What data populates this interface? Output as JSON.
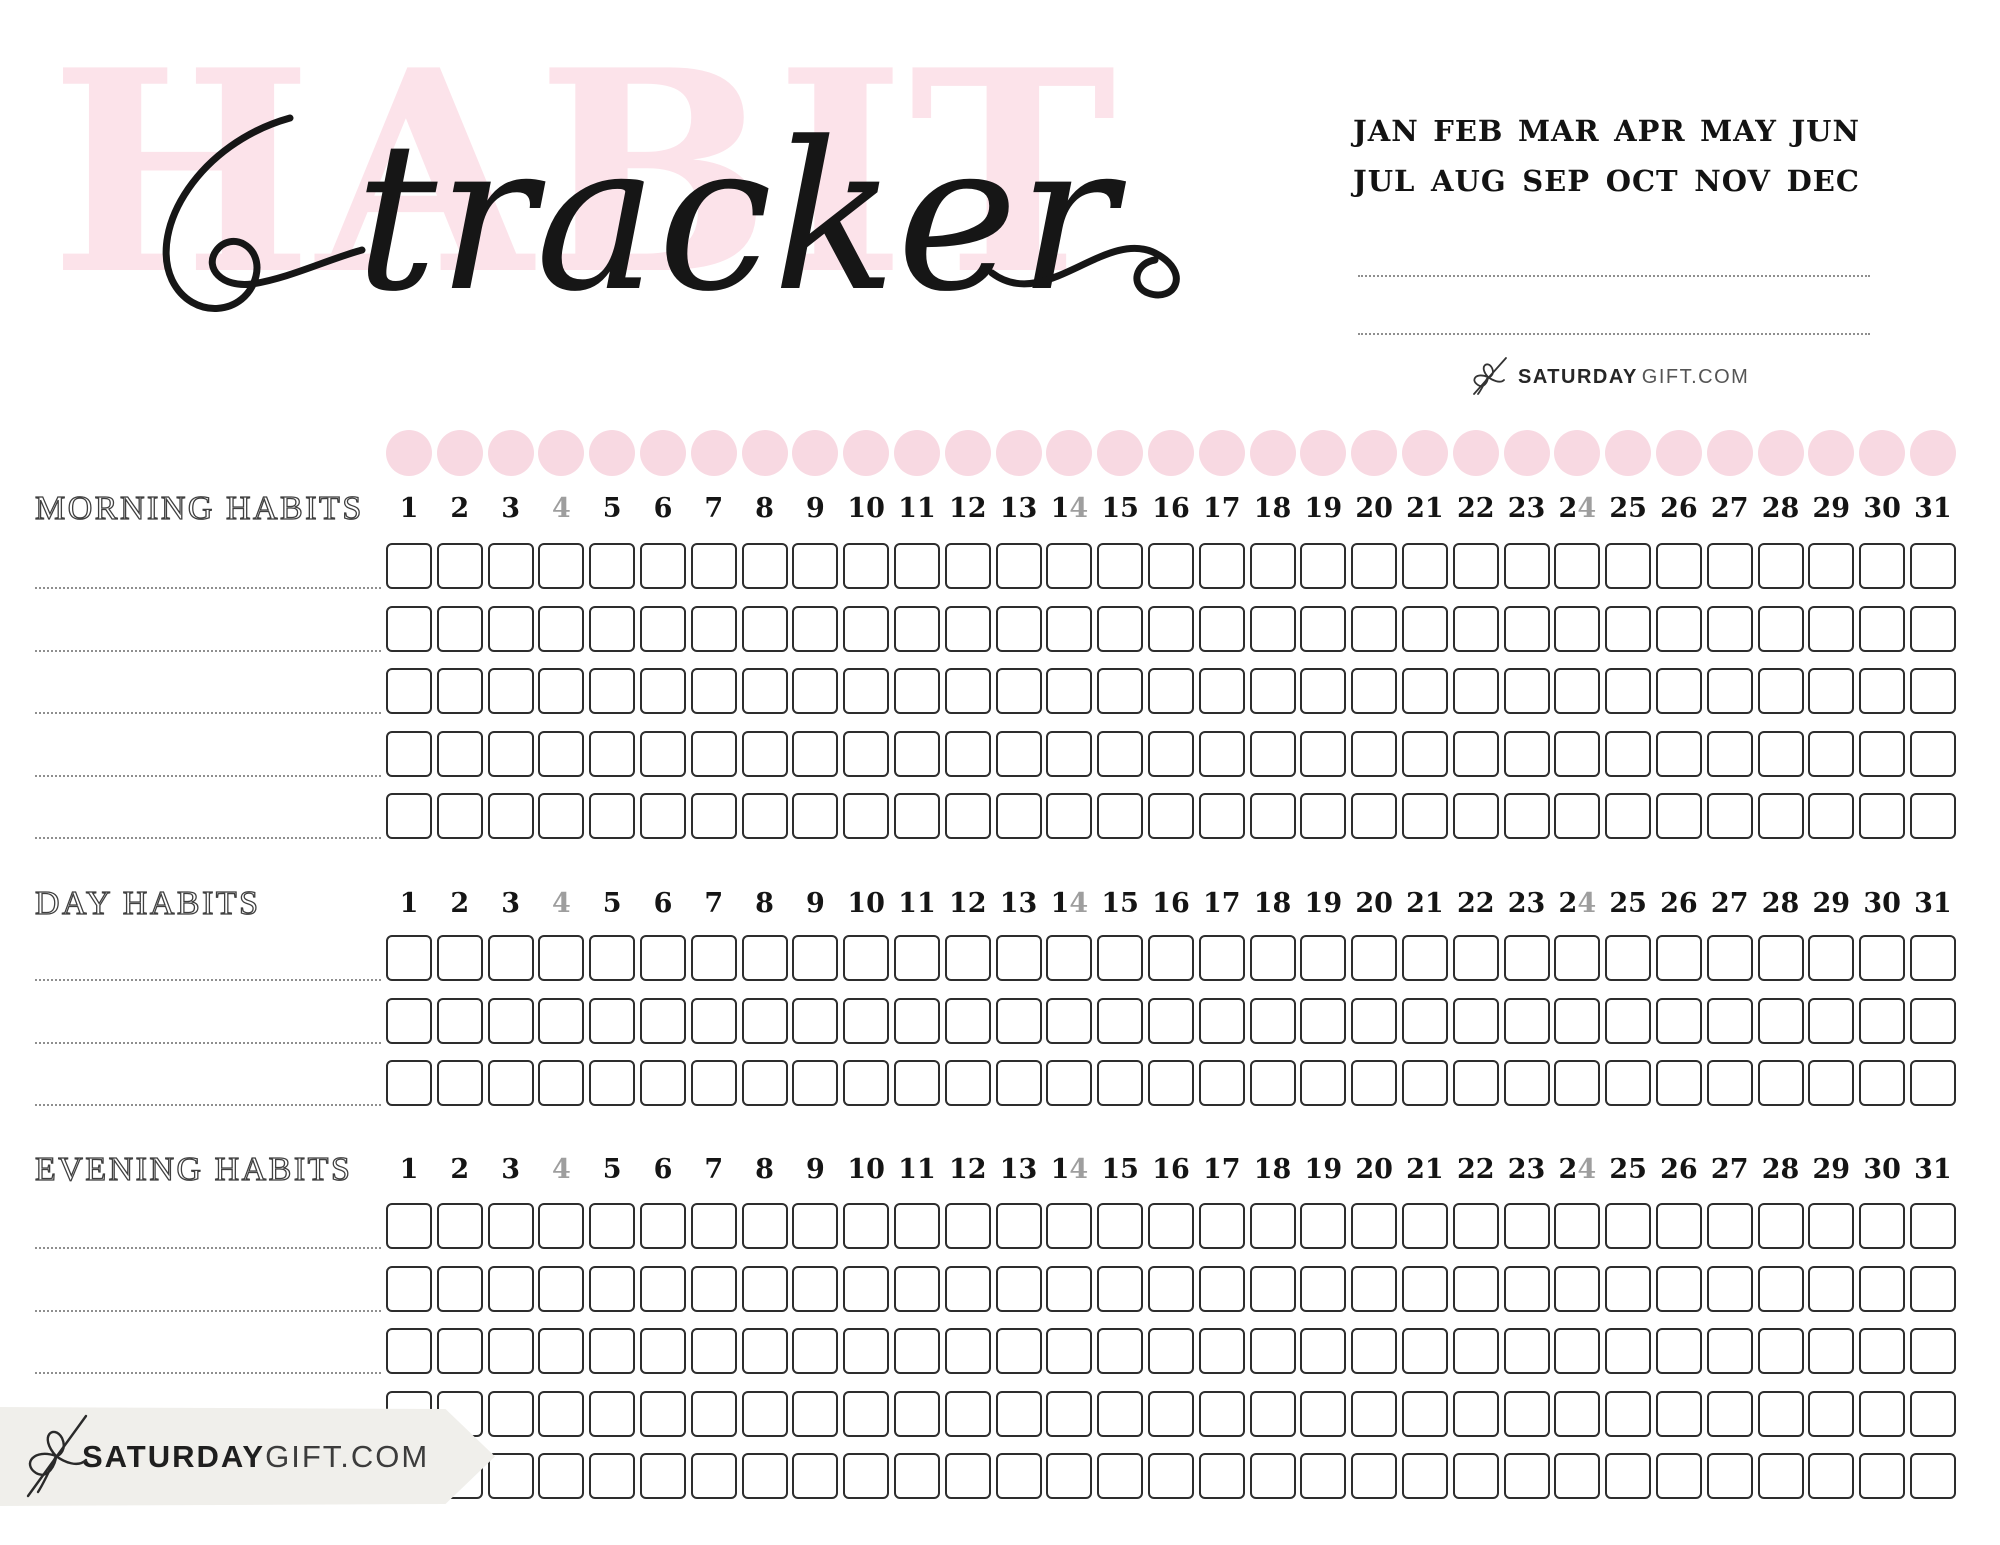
{
  "title": {
    "background_word": "HABIT",
    "script_word": "tracker"
  },
  "months": {
    "row1": [
      "JAN",
      "FEB",
      "MAR",
      "APR",
      "MAY",
      "JUN"
    ],
    "row2": [
      "JUL",
      "AUG",
      "SEP",
      "OCT",
      "NOV",
      "DEC"
    ]
  },
  "write_in_lines": 2,
  "brand_top": {
    "bold": "SATURDAY",
    "light": "GIFT.COM"
  },
  "banner": {
    "bold": "SATURDAY",
    "light": "GIFT.COM"
  },
  "grid": {
    "day_numbers": [
      1,
      2,
      3,
      4,
      5,
      6,
      7,
      8,
      9,
      10,
      11,
      12,
      13,
      14,
      15,
      16,
      17,
      18,
      19,
      20,
      21,
      22,
      23,
      24,
      25,
      26,
      27,
      28,
      29,
      30,
      31
    ],
    "circle_count": 31,
    "sections": [
      {
        "id": "morning",
        "label": "MORNING HABITS",
        "rows": 5
      },
      {
        "id": "day",
        "label": "DAY HABITS",
        "rows": 3
      },
      {
        "id": "evening",
        "label": "EVENING HABITS",
        "rows": 5
      }
    ]
  },
  "colors": {
    "pink_circle": "#f8d9e2",
    "pink_title": "#fce3ea",
    "banner_bg": "#f0efeb",
    "box_border": "#2d2d2d",
    "dot_color": "#8f8f8f",
    "four_digit": "#9e9e9e",
    "ink": "#161616"
  }
}
